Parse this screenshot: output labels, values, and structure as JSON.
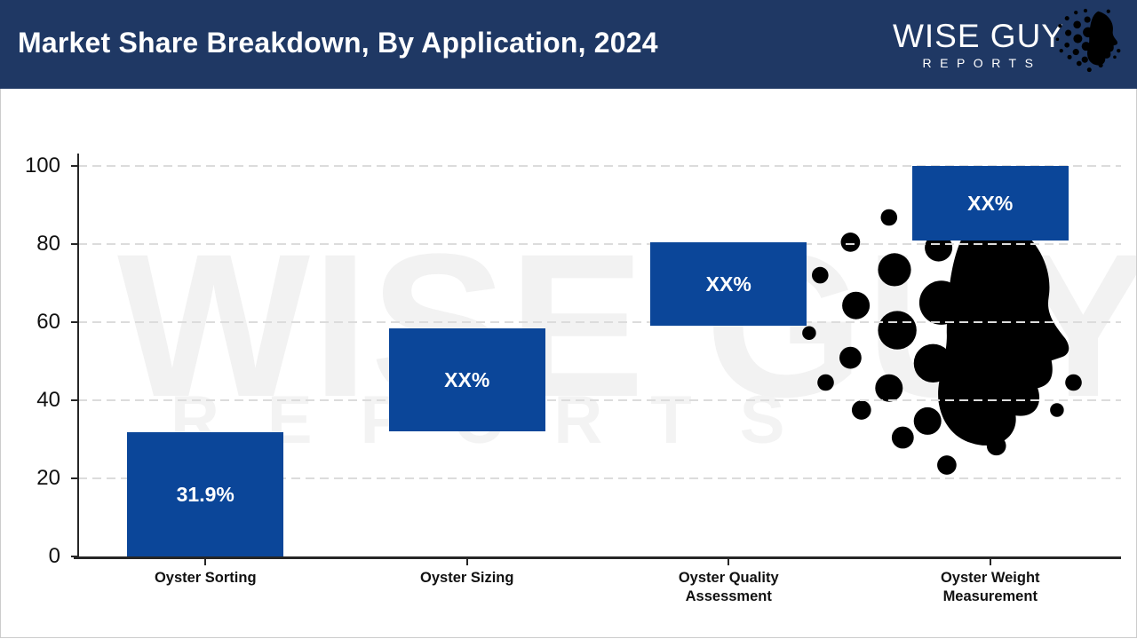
{
  "header": {
    "title": "Market Share Breakdown, By Application, 2024"
  },
  "logo": {
    "line1": "WISE GUY",
    "line2": "REPORTS"
  },
  "watermark": {
    "line1": "WISE GUY",
    "line2": "REPORTS"
  },
  "colors": {
    "header_bg": "#1f3864",
    "bar_blue": "#0b4699",
    "grid_gray": "#dcdcdc",
    "axis_dark": "#262626",
    "watermark_gray": "#f2f2f2"
  },
  "chart_data": {
    "type": "bar",
    "subtype": "waterfall",
    "title": "Market Share Breakdown, By Application, 2024",
    "categories": [
      "Oyster Sorting",
      "Oyster Sizing",
      "Oyster Quality Assessment",
      "Oyster Weight Measurement"
    ],
    "segments": [
      {
        "category": "Oyster Sorting",
        "start": 0,
        "end": 31.9,
        "label": "31.9%"
      },
      {
        "category": "Oyster Sizing",
        "start": 32.0,
        "end": 58.5,
        "label": "XX%"
      },
      {
        "category": "Oyster Quality Assessment",
        "start": 59.0,
        "end": 80.5,
        "label": "XX%"
      },
      {
        "category": "Oyster Weight Measurement",
        "start": 81.0,
        "end": 100.0,
        "label": "XX%"
      }
    ],
    "y_ticks": [
      0,
      20,
      40,
      60,
      80,
      100
    ],
    "ylim": [
      0,
      100
    ],
    "xlabel": "",
    "ylabel": "",
    "legend": "none",
    "grid": "horizontal-dashed",
    "bar_color": "#0b4699",
    "bar_label_color": "#ffffff"
  }
}
